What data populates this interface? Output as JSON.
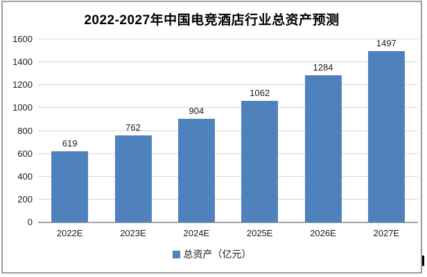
{
  "chart_data": {
    "type": "bar",
    "title": "2022-2027年中国电竞酒店行业总资产预测",
    "categories": [
      "2022E",
      "2023E",
      "2024E",
      "2025E",
      "2026E",
      "2027E"
    ],
    "values": [
      619,
      762,
      904,
      1062,
      1284,
      1497
    ],
    "series": [
      {
        "name": "总资产（亿元）",
        "values": [
          619,
          762,
          904,
          1062,
          1284,
          1497
        ]
      }
    ],
    "xlabel": "",
    "ylabel": "",
    "ylim": [
      0,
      1600
    ],
    "yticks": [
      0,
      200,
      400,
      600,
      800,
      1000,
      1200,
      1400,
      1600
    ],
    "grid": true,
    "legend_position": "bottom",
    "data_labels": true
  },
  "legend": {
    "label": "总资产（亿元）"
  },
  "colors": {
    "bar": "#4F81BD",
    "gridline": "#d6d6d6",
    "axis_line": "#a3a3a3",
    "text": "#1a1a1a",
    "frame_border": "#9b9b9b"
  }
}
